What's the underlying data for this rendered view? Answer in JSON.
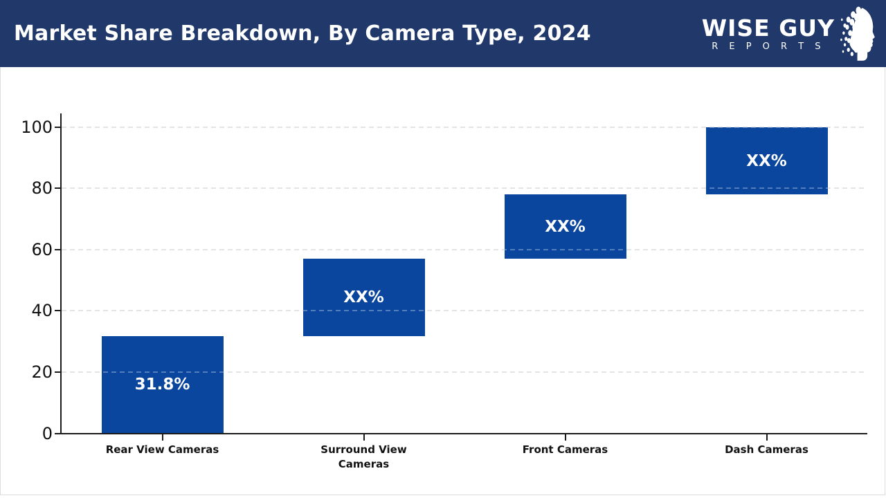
{
  "header": {
    "title": "Market Share Breakdown, By Camera Type, 2024",
    "logo": {
      "name": "WISE GUY",
      "sub": "R E P O R T S"
    }
  },
  "watermark": {
    "name": "WISE GUY",
    "sub": "R E P O R T S"
  },
  "colors": {
    "header_bg": "#21386B",
    "bar": "#0A459E",
    "grid": "#D8D8D8",
    "axis": "#1A1A1A",
    "watermark": "#F0F0F0",
    "value_label": "#FFFFFF"
  },
  "chart_data": {
    "type": "bar",
    "subtype": "waterfall-floating-bars",
    "title": "Market Share Breakdown, By Camera Type, 2024",
    "categories": [
      "Rear View Cameras",
      "Surround View Cameras",
      "Front Cameras",
      "Dash Cameras"
    ],
    "bars": [
      {
        "category": "Rear View Cameras",
        "start": 0,
        "end": 31.8,
        "label": "31.8%"
      },
      {
        "category": "Surround View Cameras",
        "start": 31.8,
        "end": 57,
        "label": "XX%"
      },
      {
        "category": "Front Cameras",
        "start": 57,
        "end": 78,
        "label": "XX%"
      },
      {
        "category": "Dash Cameras",
        "start": 78,
        "end": 100,
        "label": "XX%"
      }
    ],
    "xlabel": "",
    "ylabel": "",
    "ylim": [
      0,
      104.5
    ],
    "yticks": [
      0,
      20,
      40,
      60,
      80,
      100
    ],
    "grid": {
      "horizontal": true,
      "style": "dashed",
      "color": "#D8D8D8"
    },
    "legend": "none"
  }
}
